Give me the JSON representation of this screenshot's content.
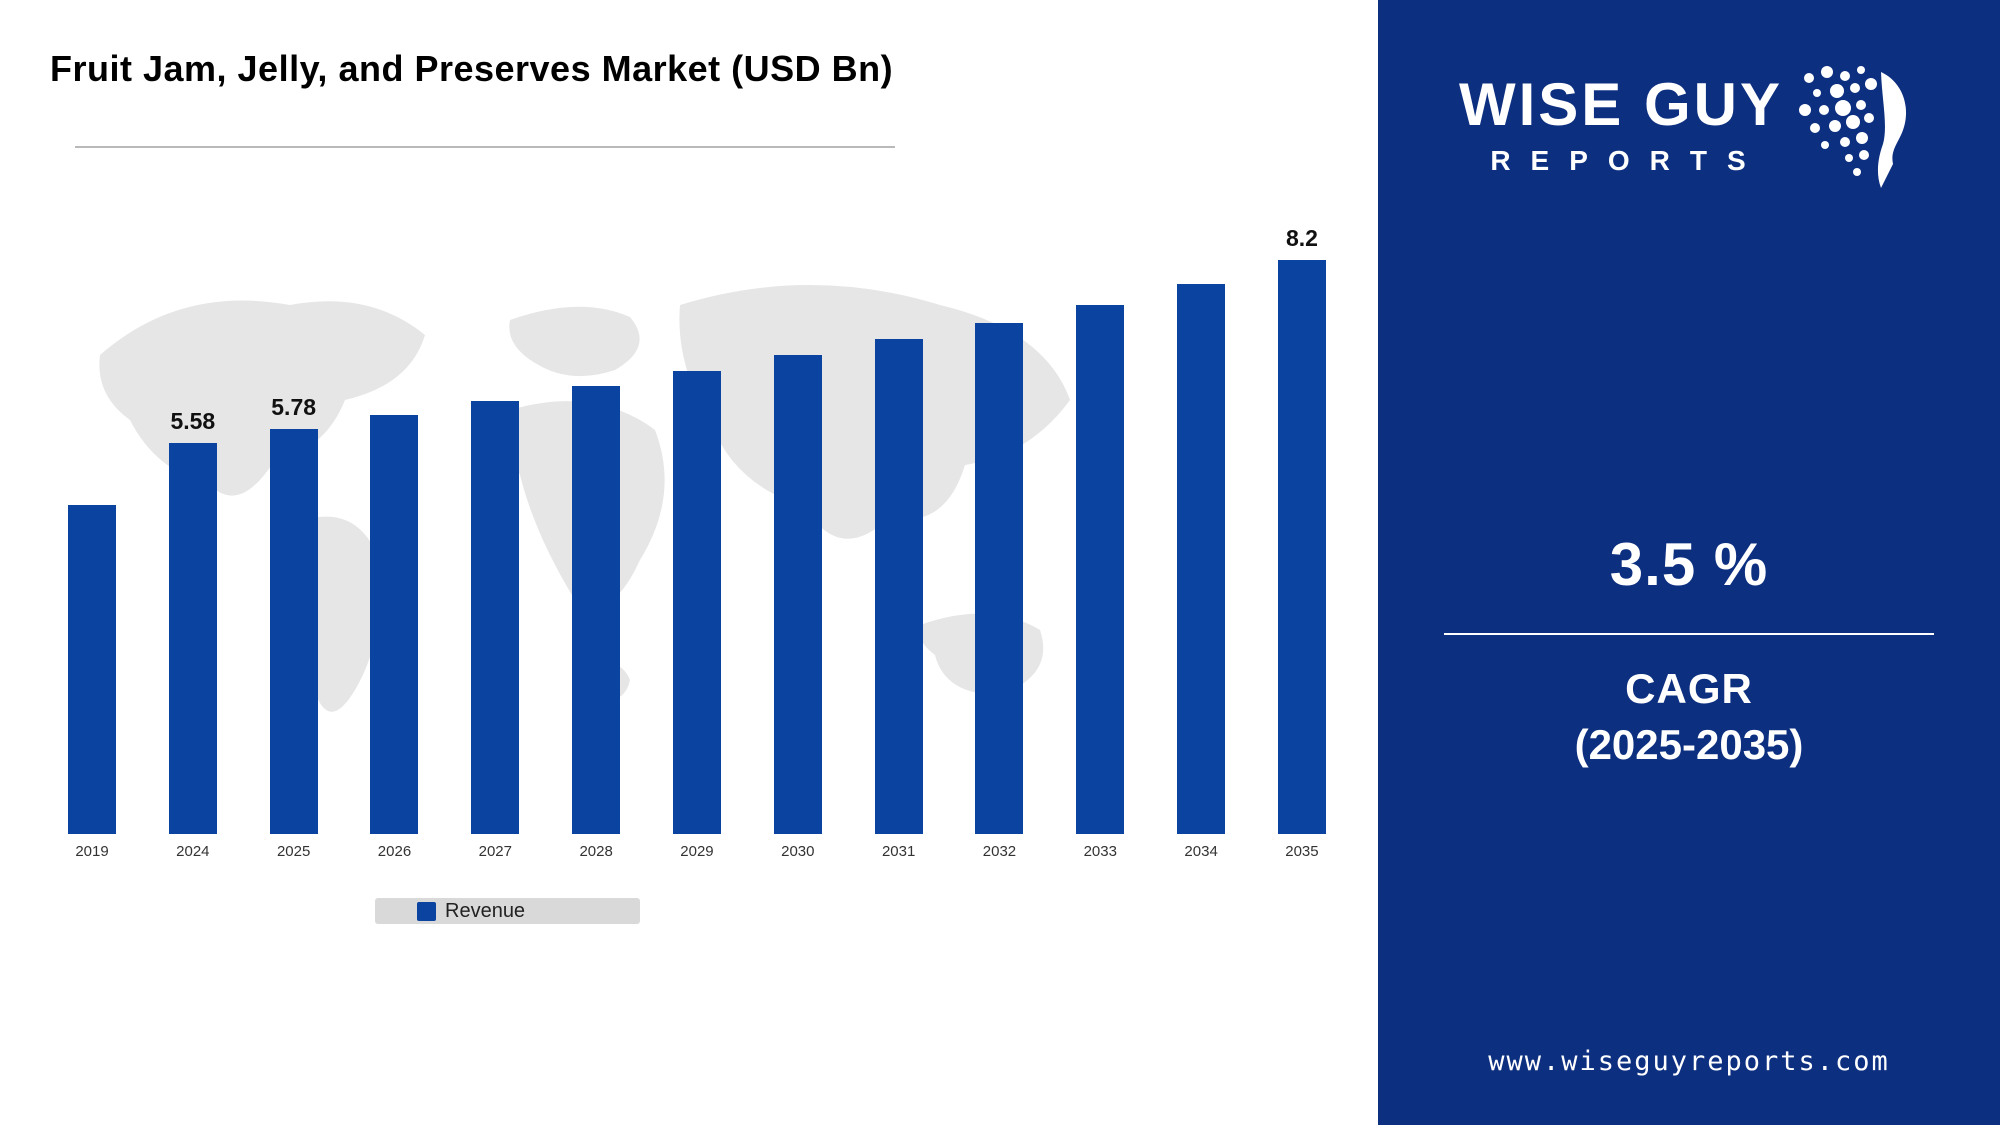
{
  "title": "Fruit Jam, Jelly, and Preserves Market (USD Bn)",
  "chart_data": {
    "type": "bar",
    "title": "Fruit Jam, Jelly, and Preserves Market (USD Bn)",
    "categories": [
      "2019",
      "2024",
      "2025",
      "2026",
      "2027",
      "2028",
      "2029",
      "2030",
      "2031",
      "2032",
      "2033",
      "2034",
      "2035"
    ],
    "values": [
      4.7,
      5.58,
      5.78,
      5.98,
      6.19,
      6.4,
      6.62,
      6.84,
      7.07,
      7.3,
      7.55,
      7.85,
      8.2
    ],
    "data_labels": [
      "",
      "5.58",
      "5.78",
      "",
      "",
      "",
      "",
      "",
      "",
      "",
      "",
      "",
      "8.2"
    ],
    "xlabel": "",
    "ylabel": "",
    "ylim": [
      0,
      8.8
    ],
    "grid": false,
    "legend": [
      "Revenue"
    ],
    "legend_position": "bottom",
    "bar_color": "#0b44a0"
  },
  "legend": {
    "revenue_label": "Revenue"
  },
  "sidebar": {
    "bg_color": "#0d2f80",
    "logo_line1": "WISE GUY",
    "logo_line2": "REPORTS",
    "cagr_value": "3.5 %",
    "cagr_label": "CAGR",
    "cagr_period": "(2025-2035)",
    "website": "www.wiseguyreports.com"
  }
}
